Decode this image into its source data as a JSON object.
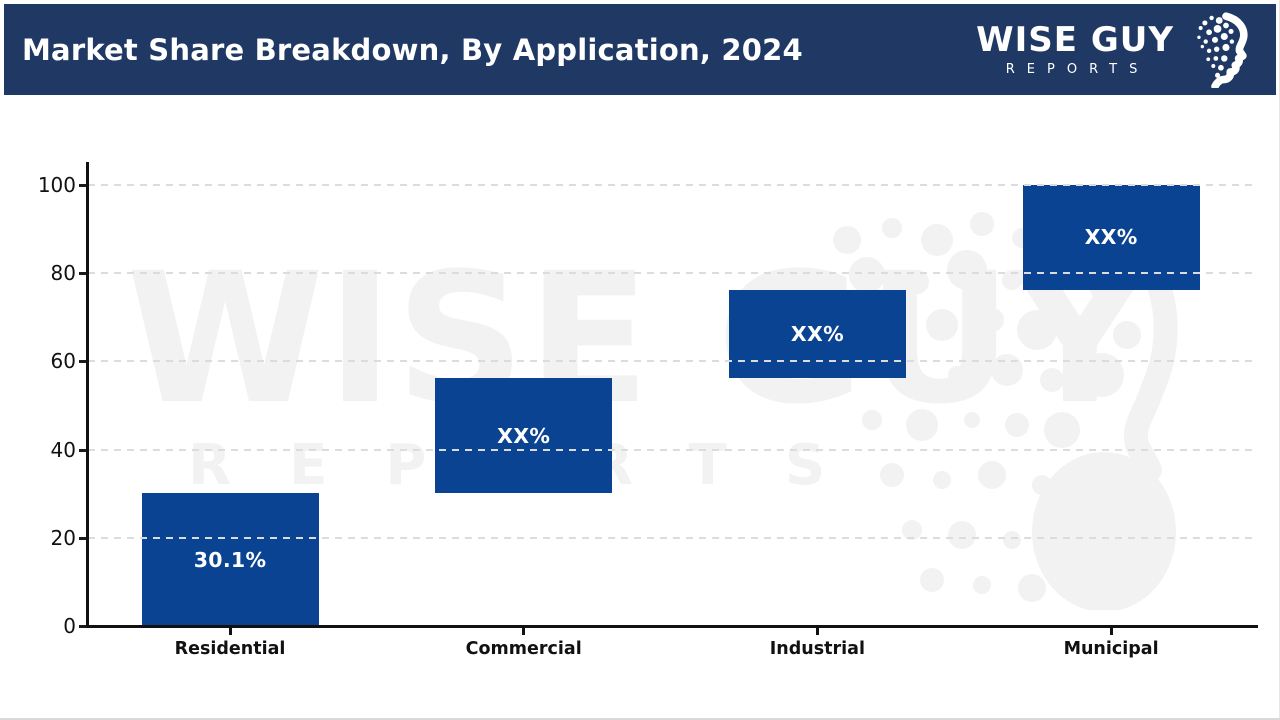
{
  "header": {
    "title": "Market Share Breakdown, By Application, 2024",
    "bg_color": "#1f3864",
    "logo": {
      "wordmark": "WISE GUY",
      "subtext": "REPORTS"
    }
  },
  "watermark": {
    "wordmark": "WISE GUY",
    "subtext": "REPORTS"
  },
  "chart_data": {
    "type": "bar",
    "subtype": "floating_segment_bars",
    "title": "Market Share Breakdown, By Application, 2024",
    "categories": [
      "Residential",
      "Commercial",
      "Industrial",
      "Municipal"
    ],
    "series": [
      {
        "name": "Market share (%)",
        "segments": [
          {
            "category": "Residential",
            "start": 0,
            "end": 30.1,
            "label": "30.1%"
          },
          {
            "category": "Commercial",
            "start": 30.1,
            "end": 56.2,
            "label": "XX%"
          },
          {
            "category": "Industrial",
            "start": 56.2,
            "end": 76.2,
            "label": "XX%"
          },
          {
            "category": "Municipal",
            "start": 76.2,
            "end": 100,
            "label": "XX%"
          }
        ]
      }
    ],
    "ylim": [
      0,
      100
    ],
    "yticks": [
      0,
      20,
      40,
      60,
      80,
      100
    ],
    "xlabel": "",
    "ylabel": "",
    "grid": {
      "horizontal": true,
      "style": "dashed",
      "color": "#dcdcdc",
      "drawn_over_bars": true
    },
    "bar_color": "#0a4391",
    "bar_label_color": "#ffffff",
    "legend": null
  }
}
